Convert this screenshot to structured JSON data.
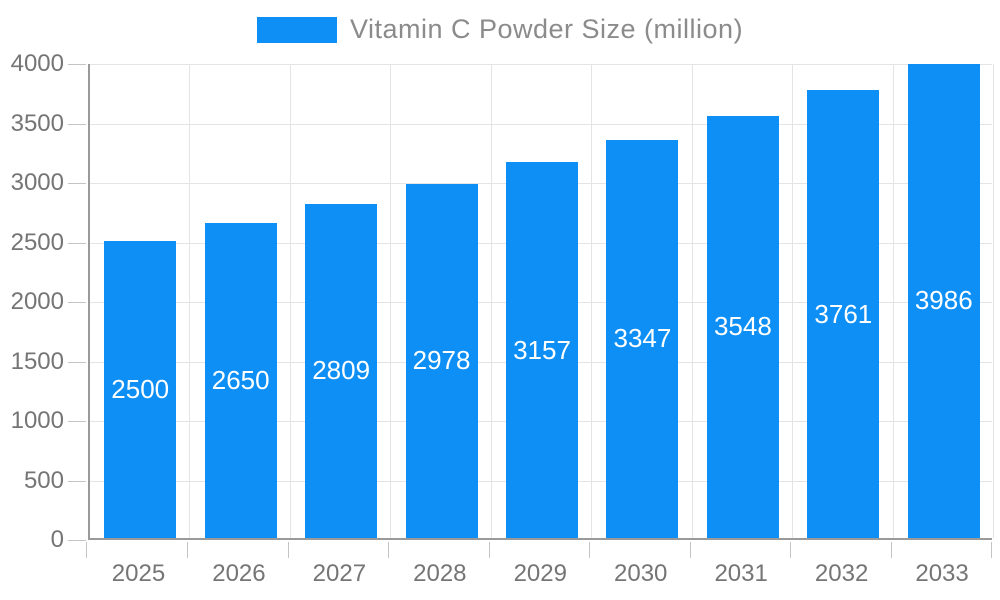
{
  "legend": {
    "label": "Vitamin C Powder Size (million)"
  },
  "colors": {
    "bar": "#0d8ff6",
    "grid": "#e4e4e4",
    "axis": "#9a9a9a",
    "tick": "#c4c4c4",
    "axis_label": "#757575",
    "legend_text": "#8b8b8b",
    "value_label": "#ffffff"
  },
  "chart_data": {
    "type": "bar",
    "title": "Vitamin C Powder Size (million)",
    "categories": [
      "2025",
      "2026",
      "2027",
      "2028",
      "2029",
      "2030",
      "2031",
      "2032",
      "2033"
    ],
    "values": [
      2500,
      2650,
      2809,
      2978,
      3157,
      3347,
      3548,
      3761,
      3986
    ],
    "xlabel": "",
    "ylabel": "",
    "ylim": [
      0,
      4000
    ],
    "ytick_step": 500,
    "ytick_labels": [
      "0",
      "500",
      "1000",
      "1500",
      "2000",
      "2500",
      "3000",
      "3500",
      "4000"
    ],
    "grid": true,
    "legend_position": "top-center",
    "value_labels": "inside-center"
  }
}
